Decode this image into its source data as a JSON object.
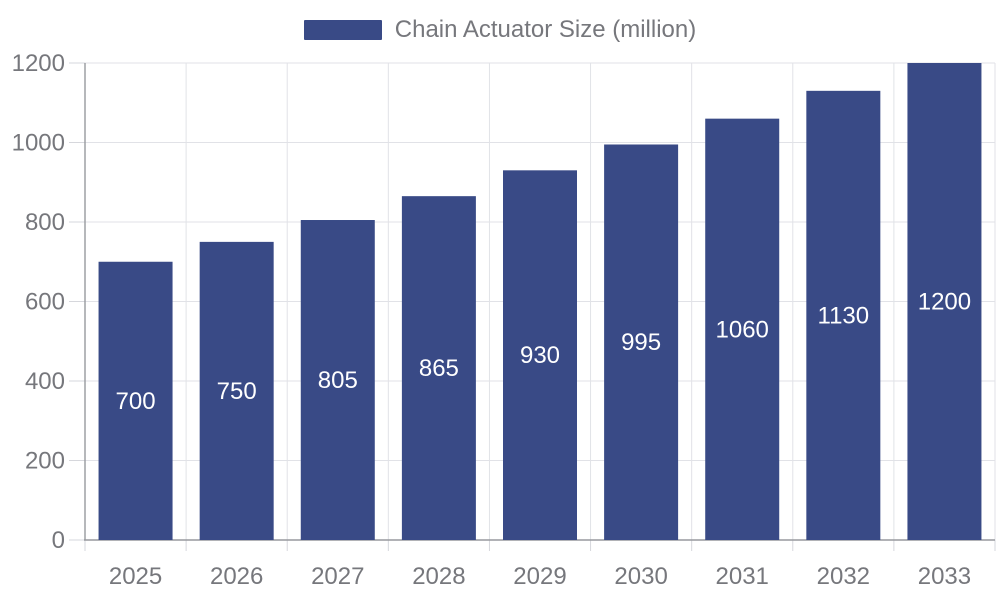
{
  "legend": {
    "label": "Chain Actuator Size (million)"
  },
  "chart_data": {
    "type": "bar",
    "title": "",
    "categories": [
      "2025",
      "2026",
      "2027",
      "2028",
      "2029",
      "2030",
      "2031",
      "2032",
      "2033"
    ],
    "series": [
      {
        "name": "Chain Actuator Size (million)",
        "values": [
          700,
          750,
          805,
          865,
          930,
          995,
          1060,
          1130,
          1200
        ]
      }
    ],
    "xlabel": "",
    "ylabel": "",
    "ylim": [
      0,
      1200
    ],
    "ytick_step": 200,
    "yticks": [
      0,
      200,
      400,
      600,
      800,
      1000,
      1200
    ],
    "grid": true,
    "legend_position": "top",
    "value_label_position": "inside-center"
  },
  "colors": {
    "bar": "#394A86",
    "grid": "#E1E2E7",
    "axis": "#97999E",
    "tick": "#D6D7DC",
    "text": "#76777C",
    "value_label": "#FFFFFF",
    "background": "#FFFFFF"
  }
}
